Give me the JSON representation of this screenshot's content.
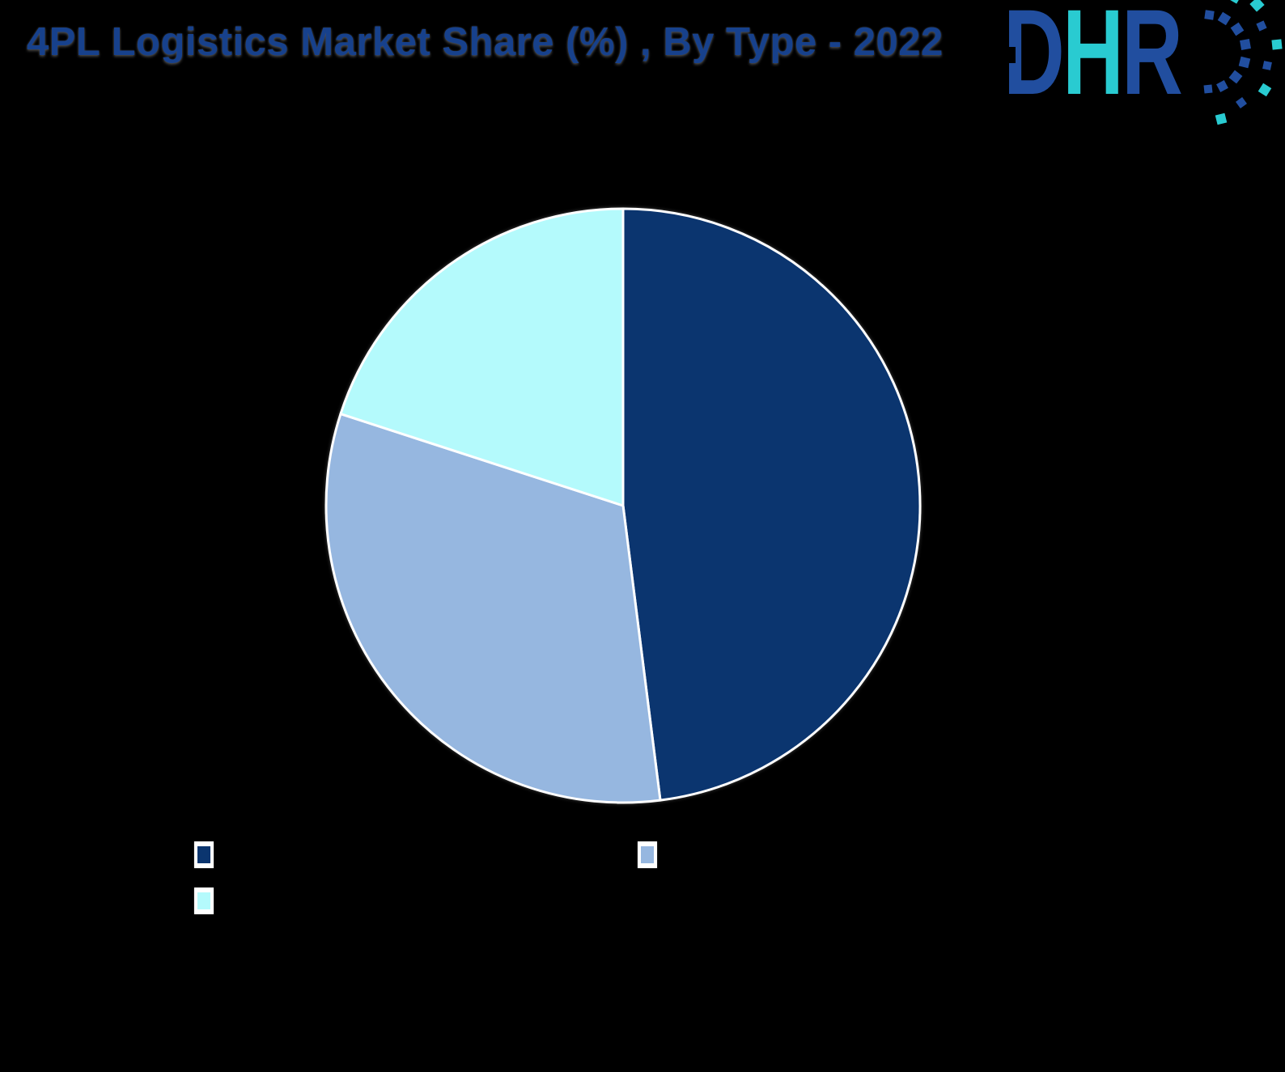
{
  "header": {
    "title": "4PL Logistics Market Share (%) , By Type - 2022",
    "logo": {
      "letter_d": "D",
      "letter_h": "H",
      "letter_r": "R"
    }
  },
  "brand": {
    "background": "#000000",
    "title_color": "#17418c",
    "logo_blue": "#214e9f",
    "logo_teal": "#29cbd1",
    "pie_outline": "#ffffff"
  },
  "chart_data": {
    "type": "pie",
    "title": "4PL Logistics Market Share (%) , By Type - 2022",
    "categories": [
      "",
      "",
      ""
    ],
    "values": [
      48,
      32,
      20
    ],
    "colors": [
      "#0b356f",
      "#96b7e0",
      "#b4fafc"
    ],
    "start_angle": "12-o-clock",
    "direction": "clockwise",
    "data_labels_visible": false,
    "legend_position": "bottom-left, two columns",
    "legend_labels_visible": false
  },
  "legend": {
    "items": [
      {
        "label": "",
        "color": "#0b356f"
      },
      {
        "label": "",
        "color": "#96b7e0"
      },
      {
        "label": "",
        "color": "#b4fafc"
      }
    ]
  }
}
